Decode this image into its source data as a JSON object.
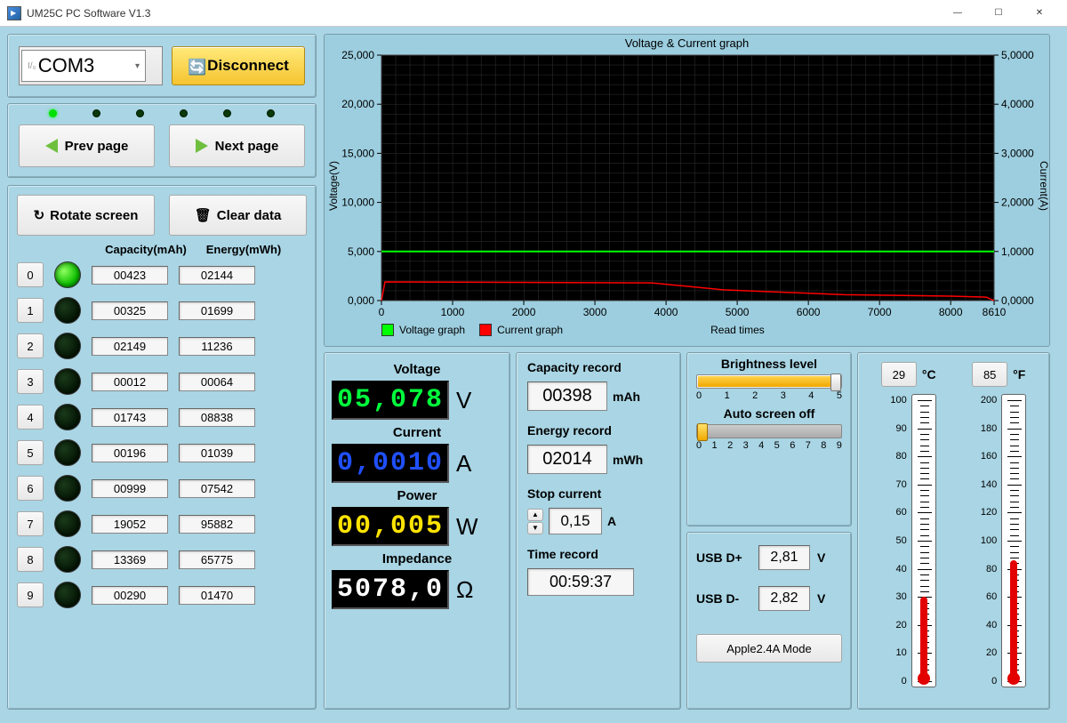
{
  "window": {
    "title": "UM25C PC Software V1.3"
  },
  "connection": {
    "port_label": "COM3",
    "disconnect_label": "Disconnect"
  },
  "nav": {
    "prev": "Prev page",
    "next": "Next page",
    "dots": [
      true,
      false,
      false,
      false,
      false,
      false
    ]
  },
  "tools": {
    "rotate": "Rotate screen",
    "clear": "Clear data"
  },
  "table": {
    "cap_header": "Capacity(mAh)",
    "energy_header": "Energy(mWh)",
    "rows": [
      {
        "idx": "0",
        "active": true,
        "cap": "00423",
        "energy": "02144"
      },
      {
        "idx": "1",
        "active": false,
        "cap": "00325",
        "energy": "01699"
      },
      {
        "idx": "2",
        "active": false,
        "cap": "02149",
        "energy": "11236"
      },
      {
        "idx": "3",
        "active": false,
        "cap": "00012",
        "energy": "00064"
      },
      {
        "idx": "4",
        "active": false,
        "cap": "01743",
        "energy": "08838"
      },
      {
        "idx": "5",
        "active": false,
        "cap": "00196",
        "energy": "01039"
      },
      {
        "idx": "6",
        "active": false,
        "cap": "00999",
        "energy": "07542"
      },
      {
        "idx": "7",
        "active": false,
        "cap": "19052",
        "energy": "95882"
      },
      {
        "idx": "8",
        "active": false,
        "cap": "13369",
        "energy": "65775"
      },
      {
        "idx": "9",
        "active": false,
        "cap": "00290",
        "energy": "01470"
      }
    ]
  },
  "readings": {
    "voltage": {
      "label": "Voltage",
      "value": "05,078",
      "unit": "V",
      "color": "#00ff3c"
    },
    "current": {
      "label": "Current",
      "value": "0,0010",
      "unit": "A",
      "color": "#2050ff"
    },
    "power": {
      "label": "Power",
      "value": "00,005",
      "unit": "W",
      "color": "#ffe400"
    },
    "impedance": {
      "label": "Impedance",
      "value": "5078,0",
      "unit": "Ω",
      "color": "#ffffff"
    }
  },
  "records": {
    "capacity": {
      "label": "Capacity record",
      "value": "00398",
      "unit": "mAh"
    },
    "energy": {
      "label": "Energy record",
      "value": "02014",
      "unit": "mWh"
    },
    "stop": {
      "label": "Stop current",
      "value": "0,15",
      "unit": "A"
    },
    "time": {
      "label": "Time record",
      "value": "00:59:37"
    }
  },
  "settings": {
    "brightness": {
      "label": "Brightness level",
      "value": 5,
      "min": 0,
      "max": 5,
      "ticks": [
        "0",
        "1",
        "2",
        "3",
        "4",
        "5"
      ]
    },
    "screenoff": {
      "label": "Auto screen off",
      "value": 0,
      "min": 0,
      "max": 9,
      "ticks": [
        "0",
        "1",
        "2",
        "3",
        "4",
        "5",
        "6",
        "7",
        "8",
        "9"
      ]
    },
    "usb_dp": {
      "label": "USB D+",
      "value": "2,81",
      "unit": "V"
    },
    "usb_dm": {
      "label": "USB D-",
      "value": "2,82",
      "unit": "V"
    },
    "mode": {
      "label": "Apple2.4A Mode"
    }
  },
  "temperature": {
    "c": {
      "value": "29",
      "unit": "°C",
      "scale_min": 0,
      "scale_max": 100,
      "fill_pct": 29
    },
    "f": {
      "value": "85",
      "unit": "°F",
      "scale_min": 0,
      "scale_max": 200,
      "fill_pct": 42.5
    }
  },
  "chart": {
    "title": "Voltage & Current graph",
    "y1_label": "Voltage(V)",
    "y2_label": "Current(A)",
    "x_label": "Read times",
    "legend_v": "Voltage graph",
    "legend_c": "Current graph",
    "bg_color": "#000000",
    "grid_color": "#333333",
    "v_color": "#00ff00",
    "c_color": "#ff0000",
    "x_min": 0,
    "x_max": 8610,
    "y1_min": 0,
    "y1_max": 25,
    "y2_min": 0,
    "y2_max": 5,
    "x_ticks": [
      "0",
      "1000",
      "2000",
      "3000",
      "4000",
      "5000",
      "6000",
      "7000",
      "8000",
      "8610"
    ],
    "y1_ticks": [
      "0,000",
      "5,000",
      "10,000",
      "15,000",
      "20,000",
      "25,000"
    ],
    "y2_ticks": [
      "0,0000",
      "1,0000",
      "2,0000",
      "3,0000",
      "4,0000",
      "5,0000"
    ],
    "voltage_series_const": 5.0,
    "current_series": [
      {
        "x": 0,
        "y": 0
      },
      {
        "x": 50,
        "y": 0.38
      },
      {
        "x": 3800,
        "y": 0.36
      },
      {
        "x": 4800,
        "y": 0.22
      },
      {
        "x": 6500,
        "y": 0.12
      },
      {
        "x": 8000,
        "y": 0.09
      },
      {
        "x": 8500,
        "y": 0.07
      },
      {
        "x": 8610,
        "y": 0
      }
    ]
  }
}
